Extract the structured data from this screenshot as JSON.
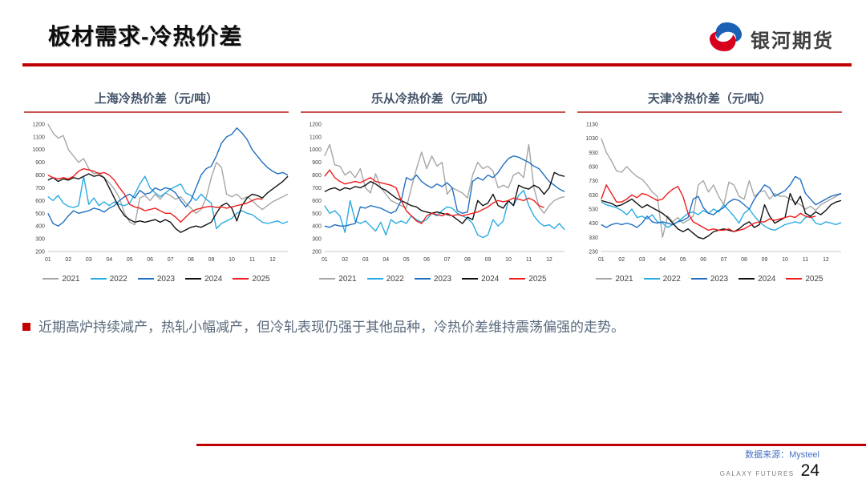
{
  "header": {
    "title": "板材需求-冷热价差"
  },
  "logo": {
    "brand": "银河期货"
  },
  "bullet": {
    "text": "近期高炉持续减产，热轧小幅减产，但冷轧表现仍强于其他品种，冷热价差维持震荡偏强的走势。"
  },
  "footer": {
    "source": "数据来源：Mysteel",
    "brand_en": "GALAXY FUTURES",
    "page": "24"
  },
  "colors": {
    "accent_red": "#C00000",
    "title_underline": "#C85450",
    "chart_title_text": "#44546A",
    "body_text": "#5A6A7D",
    "source_text": "#4472C4"
  },
  "chart_data": [
    {
      "type": "line",
      "title": "上海冷热价差（元/吨）",
      "x_labels": [
        "01",
        "02",
        "03",
        "04",
        "05",
        "06",
        "07",
        "08",
        "09",
        "10",
        "11",
        "12"
      ],
      "ylim": [
        200,
        1200
      ],
      "ytick_step": 100,
      "points_per_month": 4,
      "legend_position": "bottom",
      "grid": false,
      "series": [
        {
          "name": "2021",
          "color": "#A6A6A6",
          "values": [
            1200,
            1130,
            1090,
            1110,
            1000,
            950,
            900,
            930,
            850,
            810,
            820,
            780,
            740,
            690,
            620,
            500,
            430,
            410,
            620,
            640,
            600,
            650,
            610,
            660,
            640,
            610,
            630,
            580,
            540,
            500,
            530,
            620,
            780,
            900,
            860,
            650,
            630,
            650,
            610,
            630,
            600,
            560,
            530,
            560,
            590,
            610,
            630,
            650
          ]
        },
        {
          "name": "2022",
          "color": "#29ABE2",
          "values": [
            630,
            600,
            640,
            580,
            555,
            545,
            560,
            790,
            570,
            620,
            560,
            590,
            560,
            590,
            570,
            560,
            580,
            650,
            730,
            790,
            700,
            660,
            630,
            660,
            690,
            710,
            730,
            660,
            640,
            600,
            650,
            610,
            580,
            380,
            420,
            440,
            460,
            500,
            520,
            500,
            490,
            460,
            430,
            420,
            430,
            440,
            420,
            435
          ]
        },
        {
          "name": "2023",
          "color": "#1F6FC0",
          "values": [
            500,
            420,
            400,
            430,
            480,
            520,
            500,
            510,
            520,
            540,
            530,
            510,
            540,
            560,
            600,
            630,
            650,
            620,
            680,
            650,
            660,
            700,
            680,
            700,
            690,
            660,
            600,
            550,
            600,
            700,
            800,
            850,
            870,
            950,
            1050,
            1100,
            1120,
            1170,
            1130,
            1080,
            1000,
            950,
            900,
            860,
            830,
            810,
            820,
            800
          ]
        },
        {
          "name": "2024",
          "color": "#111111",
          "values": [
            760,
            780,
            750,
            770,
            760,
            780,
            770,
            790,
            810,
            790,
            800,
            780,
            700,
            620,
            540,
            480,
            450,
            430,
            440,
            430,
            440,
            450,
            430,
            450,
            430,
            380,
            350,
            370,
            390,
            400,
            390,
            410,
            430,
            500,
            560,
            580,
            540,
            440,
            560,
            620,
            650,
            640,
            620,
            660,
            690,
            720,
            750,
            790
          ]
        },
        {
          "name": "2025",
          "color": "#EE1C1C",
          "values": [
            800,
            780,
            770,
            780,
            770,
            790,
            830,
            850,
            840,
            830,
            810,
            820,
            800,
            760,
            700,
            650,
            570,
            550,
            540,
            520,
            530,
            540,
            520,
            500,
            500,
            470,
            430,
            470,
            510,
            530,
            540,
            550,
            555,
            545,
            550,
            540,
            550,
            560,
            570,
            580,
            600,
            615,
            610
          ]
        }
      ]
    },
    {
      "type": "line",
      "title": "乐从冷热价差（元/吨）",
      "x_labels": [
        "01",
        "02",
        "03",
        "04",
        "05",
        "06",
        "07",
        "08",
        "09",
        "10",
        "11",
        "12"
      ],
      "ylim": [
        200,
        1200
      ],
      "ytick_step": 100,
      "points_per_month": 4,
      "legend_position": "bottom",
      "grid": false,
      "series": [
        {
          "name": "2021",
          "color": "#A6A6A6",
          "values": [
            950,
            1040,
            880,
            870,
            800,
            830,
            780,
            850,
            700,
            660,
            810,
            700,
            650,
            600,
            580,
            560,
            540,
            700,
            850,
            980,
            850,
            950,
            870,
            900,
            650,
            700,
            680,
            660,
            620,
            800,
            900,
            850,
            870,
            830,
            700,
            720,
            700,
            800,
            820,
            780,
            1040,
            700,
            550,
            500,
            560,
            600,
            620,
            630
          ]
        },
        {
          "name": "2022",
          "color": "#29ABE2",
          "values": [
            560,
            500,
            520,
            480,
            350,
            600,
            440,
            420,
            440,
            400,
            360,
            430,
            330,
            450,
            420,
            440,
            420,
            480,
            450,
            430,
            450,
            500,
            480,
            520,
            550,
            540,
            500,
            480,
            460,
            420,
            330,
            310,
            330,
            450,
            400,
            440,
            600,
            560,
            640,
            680,
            560,
            480,
            430,
            400,
            410,
            380,
            420,
            370
          ]
        },
        {
          "name": "2023",
          "color": "#1F6FC0",
          "values": [
            400,
            390,
            410,
            400,
            400,
            410,
            420,
            550,
            540,
            560,
            550,
            540,
            520,
            500,
            520,
            600,
            780,
            760,
            800,
            750,
            720,
            700,
            730,
            710,
            740,
            700,
            520,
            500,
            510,
            750,
            780,
            760,
            800,
            780,
            820,
            880,
            930,
            950,
            940,
            920,
            900,
            870,
            850,
            800,
            750,
            720,
            690,
            670
          ]
        },
        {
          "name": "2024",
          "color": "#111111",
          "values": [
            670,
            690,
            700,
            680,
            700,
            690,
            710,
            700,
            720,
            750,
            730,
            700,
            680,
            650,
            620,
            600,
            580,
            560,
            550,
            520,
            510,
            500,
            510,
            500,
            490,
            480,
            450,
            420,
            470,
            450,
            600,
            560,
            580,
            650,
            560,
            540,
            600,
            560,
            720,
            700,
            690,
            720,
            700,
            650,
            700,
            820,
            800,
            790
          ]
        },
        {
          "name": "2025",
          "color": "#EE1C1C",
          "values": [
            790,
            840,
            780,
            750,
            730,
            740,
            750,
            740,
            760,
            780,
            750,
            740,
            730,
            720,
            700,
            600,
            520,
            480,
            440,
            420,
            480,
            500,
            490,
            480,
            500,
            480,
            490,
            480,
            490,
            500,
            510,
            530,
            550,
            580,
            600,
            590,
            600,
            620,
            610,
            600,
            620,
            600,
            560,
            545
          ]
        }
      ]
    },
    {
      "type": "line",
      "title": "天津冷热价差（元/吨）",
      "x_labels": [
        "01",
        "02",
        "03",
        "04",
        "05",
        "06",
        "07",
        "08",
        "09",
        "10",
        "11",
        "12"
      ],
      "ylim": [
        230,
        1130
      ],
      "ytick_step": 100,
      "points_per_month": 4,
      "legend_position": "bottom",
      "grid": false,
      "series": [
        {
          "name": "2021",
          "color": "#A6A6A6",
          "values": [
            1030,
            930,
            870,
            800,
            790,
            830,
            790,
            760,
            740,
            700,
            650,
            620,
            330,
            480,
            440,
            470,
            430,
            450,
            480,
            700,
            730,
            650,
            700,
            620,
            560,
            720,
            700,
            620,
            600,
            730,
            620,
            650,
            660,
            600,
            640,
            620,
            620,
            600,
            580,
            560,
            530,
            550,
            520,
            560,
            580,
            600,
            620,
            640
          ]
        },
        {
          "name": "2022",
          "color": "#29ABE2",
          "values": [
            580,
            560,
            550,
            540,
            520,
            490,
            530,
            470,
            480,
            460,
            490,
            440,
            430,
            400,
            420,
            440,
            470,
            500,
            510,
            490,
            520,
            500,
            530,
            510,
            560,
            520,
            480,
            430,
            500,
            530,
            480,
            440,
            410,
            390,
            380,
            400,
            420,
            430,
            440,
            430,
            470,
            480,
            430,
            420,
            440,
            430,
            420,
            435
          ]
        },
        {
          "name": "2023",
          "color": "#1F6FC0",
          "values": [
            420,
            400,
            420,
            430,
            420,
            430,
            420,
            400,
            430,
            480,
            440,
            430,
            440,
            430,
            420,
            440,
            450,
            470,
            600,
            620,
            540,
            500,
            490,
            520,
            540,
            580,
            600,
            590,
            560,
            530,
            600,
            650,
            700,
            680,
            620,
            640,
            660,
            700,
            760,
            740,
            640,
            600,
            560,
            580,
            600,
            620,
            630,
            640
          ]
        },
        {
          "name": "2024",
          "color": "#111111",
          "values": [
            590,
            580,
            570,
            550,
            560,
            580,
            600,
            570,
            540,
            560,
            540,
            520,
            500,
            470,
            430,
            390,
            370,
            390,
            360,
            330,
            320,
            340,
            370,
            380,
            390,
            380,
            370,
            390,
            420,
            440,
            400,
            420,
            560,
            480,
            430,
            450,
            470,
            640,
            560,
            620,
            500,
            480,
            510,
            490,
            520,
            560,
            580,
            590
          ]
        },
        {
          "name": "2025",
          "color": "#EE1C1C",
          "values": [
            600,
            700,
            640,
            580,
            580,
            600,
            630,
            610,
            640,
            630,
            610,
            590,
            600,
            640,
            670,
            690,
            620,
            500,
            440,
            420,
            400,
            380,
            390,
            380,
            380,
            390,
            370,
            380,
            390,
            410,
            430,
            440,
            440,
            460,
            450,
            460,
            470,
            480,
            470,
            500,
            480,
            470,
            480
          ]
        }
      ]
    }
  ]
}
